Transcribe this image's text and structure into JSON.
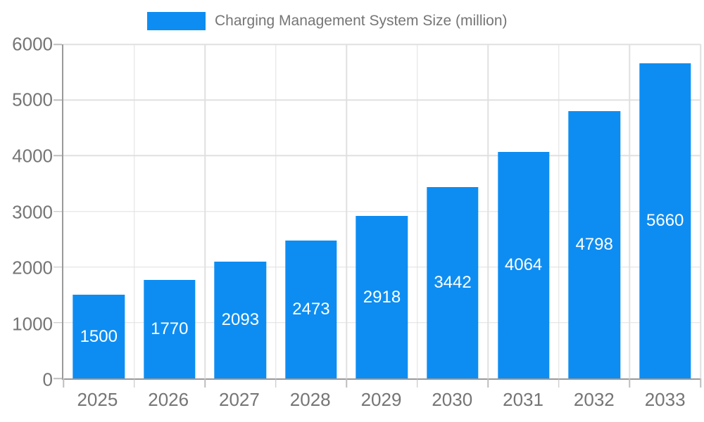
{
  "legend": {
    "label": "Charging Management System Size (million)"
  },
  "colors": {
    "bar": "#0d8df2",
    "grid": "#e0e0e0",
    "axis": "#999999",
    "tick": "#bdbdbd",
    "text": "#757575",
    "value_label": "#ffffff",
    "background": "#ffffff"
  },
  "chart_data": {
    "type": "bar",
    "title": "Charging Management System Size (million)",
    "series_name": "Charging Management System Size (million)",
    "categories": [
      "2025",
      "2026",
      "2027",
      "2028",
      "2029",
      "2030",
      "2031",
      "2032",
      "2033"
    ],
    "values": [
      1500,
      1770,
      2093,
      2473,
      2918,
      3442,
      4064,
      4798,
      5660
    ],
    "value_labels": [
      "1500",
      "1770",
      "2093",
      "2473",
      "2918",
      "3442",
      "4064",
      "4798",
      "5660"
    ],
    "xlabel": "",
    "ylabel": "",
    "ylim": [
      0,
      6000
    ],
    "yticks": [
      0,
      1000,
      2000,
      3000,
      4000,
      5000,
      6000
    ],
    "ytick_labels": [
      "0",
      "1000",
      "2000",
      "3000",
      "4000",
      "5000",
      "6000"
    ],
    "grid": true,
    "legend_position": "top",
    "value_label_position": "inside-center"
  }
}
